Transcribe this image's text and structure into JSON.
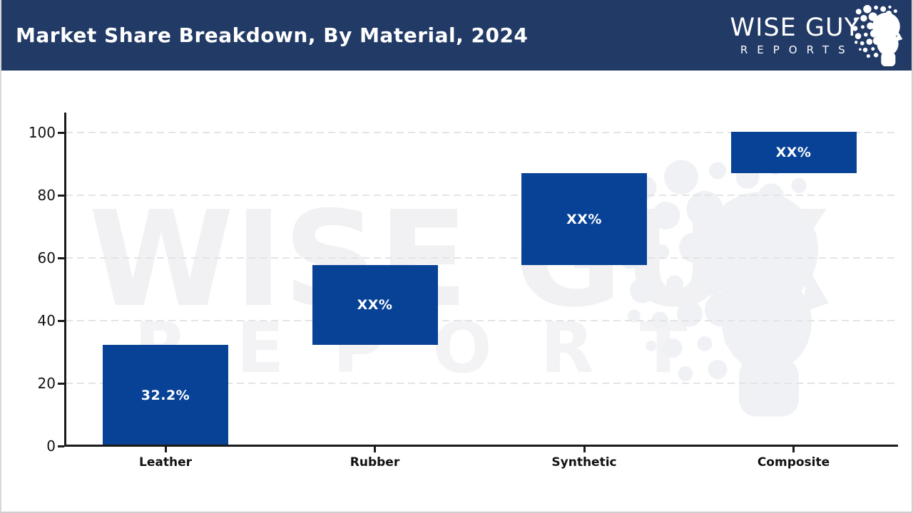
{
  "header": {
    "title": "Market Share Breakdown, By Material, 2024",
    "bg_color": "#213a66",
    "brand": {
      "line1": "WISE GUY",
      "line2": "REPORTS"
    }
  },
  "watermark": {
    "line1": "WISE GUY",
    "line2": "REPORTS"
  },
  "chart_data": {
    "type": "bar",
    "subtype": "waterfall",
    "title": "Market Share Breakdown, By Material, 2024",
    "categories": [
      "Leather",
      "Rubber",
      "Synthetic",
      "Composite"
    ],
    "segments": [
      {
        "category": "Leather",
        "start": 0,
        "end": 32.2,
        "label": "32.2%"
      },
      {
        "category": "Rubber",
        "start": 32.2,
        "end": 57.7,
        "label": "XX%"
      },
      {
        "category": "Synthetic",
        "start": 57.7,
        "end": 87.0,
        "label": "XX%"
      },
      {
        "category": "Composite",
        "start": 87.0,
        "end": 100.2,
        "label": "XX%"
      }
    ],
    "yticks": [
      0,
      20,
      40,
      60,
      80,
      100
    ],
    "ylim": [
      0,
      106
    ],
    "xlabel": "",
    "ylabel": "",
    "grid": "horizontal-dashed",
    "legend": "none",
    "bar_color": "#084296",
    "label_color": "#ffffff",
    "axis_color": "#1a1a1a"
  }
}
